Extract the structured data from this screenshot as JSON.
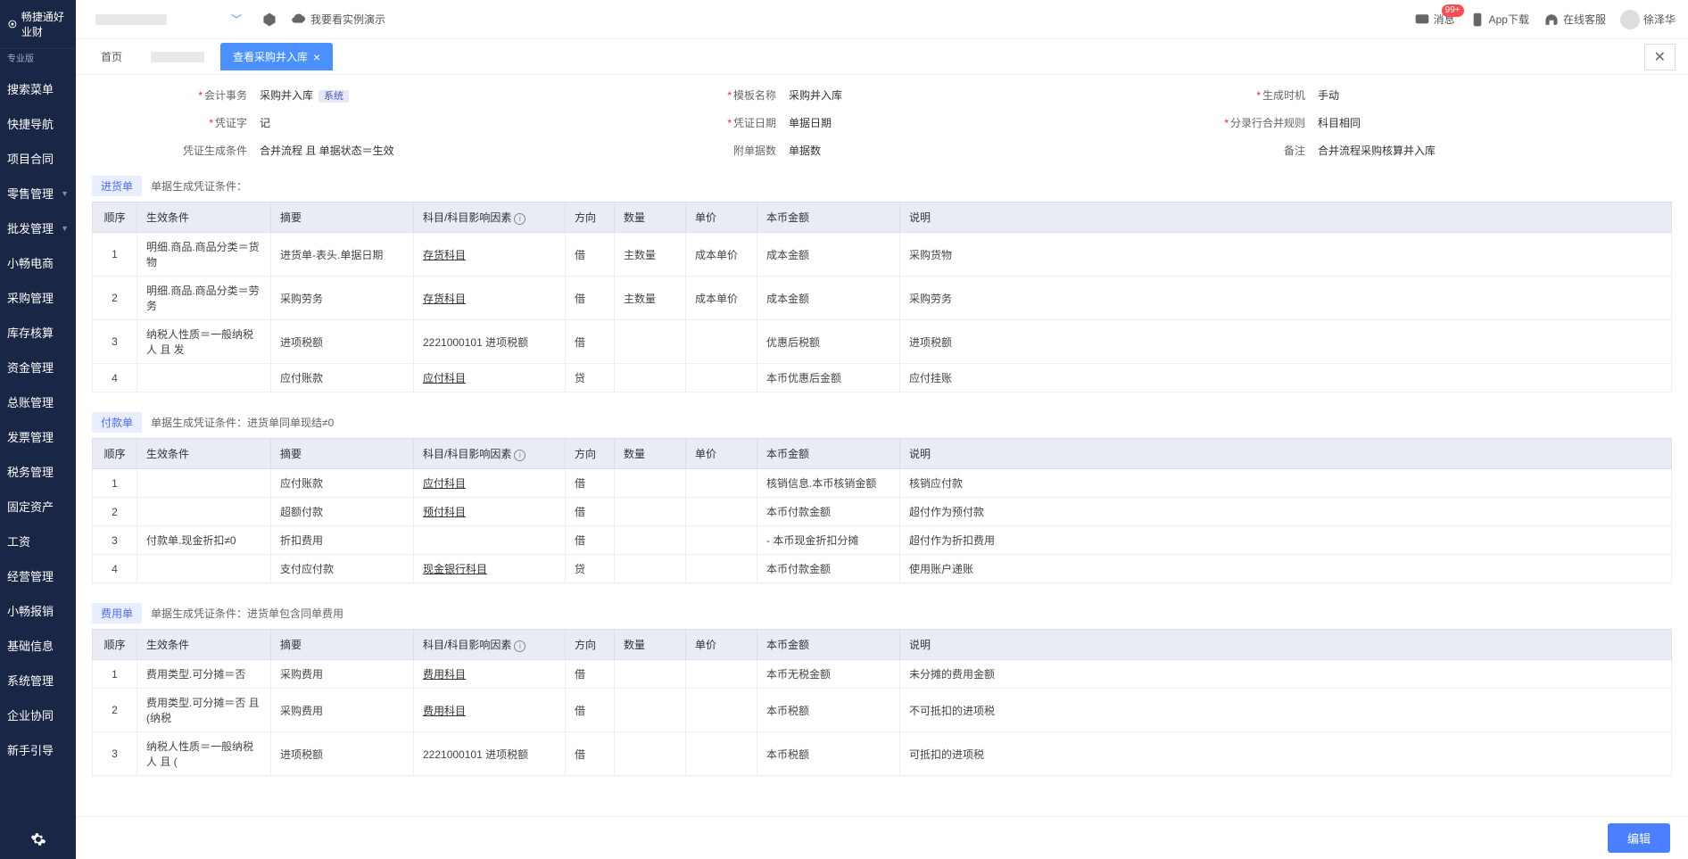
{
  "brand": {
    "name": "畅捷通好业财",
    "version": "专业版"
  },
  "sidebar": {
    "items": [
      {
        "label": "搜索菜单",
        "expandable": false
      },
      {
        "label": "快捷导航",
        "expandable": false
      },
      {
        "label": "项目合同",
        "expandable": false
      },
      {
        "label": "零售管理",
        "expandable": true
      },
      {
        "label": "批发管理",
        "expandable": true
      },
      {
        "label": "小畅电商",
        "expandable": false
      },
      {
        "label": "采购管理",
        "expandable": false
      },
      {
        "label": "库存核算",
        "expandable": false
      },
      {
        "label": "资金管理",
        "expandable": false
      },
      {
        "label": "总账管理",
        "expandable": false
      },
      {
        "label": "发票管理",
        "expandable": false
      },
      {
        "label": "税务管理",
        "expandable": false
      },
      {
        "label": "固定资产",
        "expandable": false
      },
      {
        "label": "工资",
        "expandable": false
      },
      {
        "label": "经营管理",
        "expandable": false
      },
      {
        "label": "小畅报销",
        "expandable": false
      },
      {
        "label": "基础信息",
        "expandable": false
      },
      {
        "label": "系统管理",
        "expandable": false
      },
      {
        "label": "企业协同",
        "expandable": false
      },
      {
        "label": "新手引导",
        "expandable": false
      }
    ]
  },
  "topbar": {
    "demo": "我要看实例演示",
    "msg": "消息",
    "msg_badge": "99+",
    "download": "App下载",
    "service": "在线客服",
    "user": "徐泽华"
  },
  "tabs": {
    "home": "首页",
    "active": "查看采购并入库",
    "close_all": "✕"
  },
  "form": {
    "f1_label": "会计事务",
    "f1_value": "采购并入库",
    "f1_tag": "系统",
    "f2_label": "模板名称",
    "f2_value": "采购并入库",
    "f3_label": "生成时机",
    "f3_value": "手动",
    "f4_label": "凭证字",
    "f4_value": "记",
    "f5_label": "凭证日期",
    "f5_value": "单据日期",
    "f6_label": "分录行合并规则",
    "f6_value": "科目相同",
    "f7_label": "凭证生成条件",
    "f7_value": "合并流程 且 单据状态＝生效",
    "f8_label": "附单据数",
    "f8_value": "单据数",
    "f9_label": "备注",
    "f9_value": "合并流程采购核算并入库"
  },
  "table_headers": {
    "seq": "顺序",
    "cond": "生效条件",
    "summary": "摘要",
    "subject": "科目/科目影响因素",
    "dir": "方向",
    "qty": "数量",
    "price": "单价",
    "amount": "本币金额",
    "note": "说明",
    "info_icon": "ⓘ"
  },
  "sections": [
    {
      "badge": "进货单",
      "desc": "单据生成凭证条件：",
      "rows": [
        {
          "seq": "1",
          "cond": "明细.商品.商品分类＝货物",
          "summary": "进货单-表头.单据日期",
          "subject": "存货科目",
          "subject_link": true,
          "dir": "借",
          "qty": "主数量",
          "price": "成本单价",
          "amount": "成本金额",
          "note": "采购货物"
        },
        {
          "seq": "2",
          "cond": "明细.商品.商品分类＝劳务",
          "summary": "采购劳务",
          "subject": "存货科目",
          "subject_link": true,
          "dir": "借",
          "qty": "主数量",
          "price": "成本单价",
          "amount": "成本金额",
          "note": "采购劳务"
        },
        {
          "seq": "3",
          "cond": "纳税人性质＝一般纳税人 且 发",
          "summary": "进项税额",
          "subject": "2221000101 进项税额",
          "subject_link": false,
          "dir": "借",
          "qty": "",
          "price": "",
          "amount": "优惠后税额",
          "note": "进项税额"
        },
        {
          "seq": "4",
          "cond": "",
          "summary": "应付账款",
          "subject": "应付科目",
          "subject_link": true,
          "dir": "贷",
          "qty": "",
          "price": "",
          "amount": "本币优惠后金额",
          "note": "应付挂账"
        }
      ]
    },
    {
      "badge": "付款单",
      "desc": "单据生成凭证条件：进货单同单现结≠0",
      "rows": [
        {
          "seq": "1",
          "cond": "",
          "summary": "应付账款",
          "subject": "应付科目",
          "subject_link": true,
          "dir": "借",
          "qty": "",
          "price": "",
          "amount": "核销信息.本币核销金额",
          "note": "核销应付款"
        },
        {
          "seq": "2",
          "cond": "",
          "summary": "超额付款",
          "subject": "预付科目",
          "subject_link": true,
          "dir": "借",
          "qty": "",
          "price": "",
          "amount": "本币付款金额",
          "note": "超付作为预付款"
        },
        {
          "seq": "3",
          "cond": "付款单.现金折扣≠0",
          "summary": "折扣费用",
          "subject": "",
          "subject_link": false,
          "dir": "借",
          "qty": "",
          "price": "",
          "amount": "- 本币现金折扣分摊",
          "note": "超付作为折扣费用"
        },
        {
          "seq": "4",
          "cond": "",
          "summary": "支付应付款",
          "subject": "现金银行科目",
          "subject_link": true,
          "dir": "贷",
          "qty": "",
          "price": "",
          "amount": "本币付款金额",
          "note": "使用账户递账"
        }
      ]
    },
    {
      "badge": "费用单",
      "desc": "单据生成凭证条件：进货单包含同单费用",
      "rows": [
        {
          "seq": "1",
          "cond": "费用类型.可分摊＝否",
          "summary": "采购费用",
          "subject": "费用科目",
          "subject_link": true,
          "dir": "借",
          "qty": "",
          "price": "",
          "amount": "本币无税金额",
          "note": "未分摊的费用金额"
        },
        {
          "seq": "2",
          "cond": "费用类型.可分摊＝否 且 (纳税",
          "summary": "采购费用",
          "subject": "费用科目",
          "subject_link": true,
          "dir": "借",
          "qty": "",
          "price": "",
          "amount": "本币税额",
          "note": "不可抵扣的进项税"
        },
        {
          "seq": "3",
          "cond": "纳税人性质＝一般纳税人 且 (",
          "summary": "进项税额",
          "subject": "2221000101 进项税额",
          "subject_link": false,
          "dir": "借",
          "qty": "",
          "price": "",
          "amount": "本币税额",
          "note": "可抵扣的进项税"
        }
      ]
    }
  ],
  "footer": {
    "edit": "编辑"
  }
}
